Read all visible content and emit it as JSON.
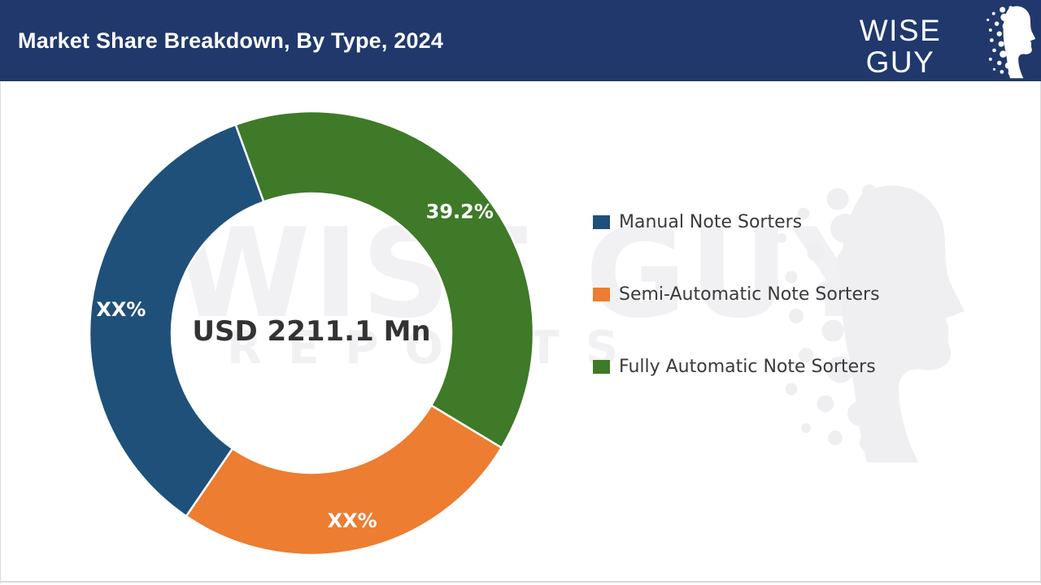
{
  "header": {
    "title": "Market Share Breakdown, By Type, 2024",
    "logo": {
      "line1": "WISE GUY",
      "line2": "REPORTS"
    },
    "bg_color": "#20386B"
  },
  "watermark": {
    "line1": "WISE GUY",
    "line2": "REPORTS"
  },
  "chart_data": {
    "type": "pie",
    "subtype": "donut",
    "title": "Market Share Breakdown, By Type, 2024",
    "center_label": "USD 2211.1 Mn",
    "start_angle_deg": -20,
    "direction": "clockwise",
    "inner_radius_ratio": 0.63,
    "legend_position": "right",
    "segments": [
      {
        "label": "Fully Automatic Note Sorters",
        "value_pct": 39.2,
        "display_label": "39.2%",
        "color": "#3E7A27"
      },
      {
        "label": "Semi-Automatic Note Sorters",
        "value_pct": 25.9,
        "display_label": "XX%",
        "color": "#EC7D31"
      },
      {
        "label": "Manual Note Sorters",
        "value_pct": 34.9,
        "display_label": "XX%",
        "color": "#1F5079"
      }
    ]
  },
  "legend": {
    "items": [
      {
        "label": "Manual Note Sorters",
        "color": "#1F5079"
      },
      {
        "label": "Semi-Automatic Note Sorters",
        "color": "#EC7D31"
      },
      {
        "label": "Fully Automatic Note Sorters",
        "color": "#3E7A27"
      }
    ]
  },
  "colors": {
    "header_bg": "#20386B",
    "center_text": "#333333",
    "legend_text": "#3A3A3A",
    "watermark": "#F1F1F4",
    "divider": "#D9D9D9"
  }
}
